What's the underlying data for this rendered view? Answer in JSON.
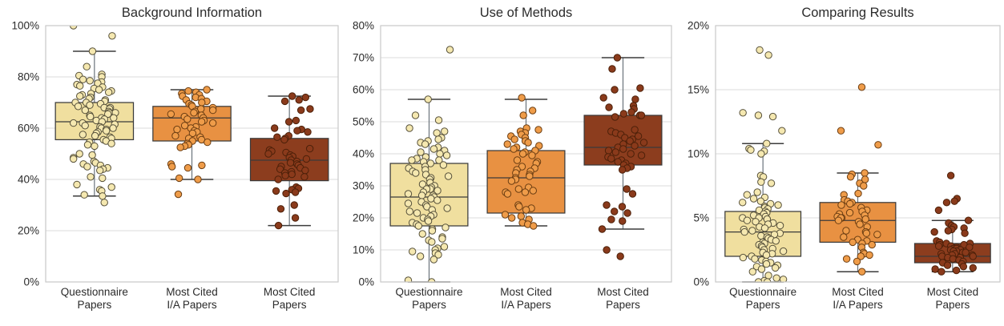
{
  "style": {
    "background": "#FFFFFF",
    "grid_color": "#DBDBDB",
    "spine_color": "#C9C9C9",
    "box_edge_color": "#3B3B3B",
    "whisker_line_color": "#6A737B",
    "cap_color": "#3B3B3B",
    "text_color": "#2B2B2B",
    "title_color": "#2B2B2B"
  },
  "palette": [
    {
      "name": "questionnaire-papers",
      "box_fill": "#F0DF9F",
      "point_fill": "#F5E8B0",
      "point_edge": "#56503A"
    },
    {
      "name": "most-cited-ia-papers",
      "box_fill": "#E89142",
      "point_fill": "#EF9C49",
      "point_edge": "#6B3D12"
    },
    {
      "name": "most-cited-papers",
      "box_fill": "#8C3D1E",
      "point_fill": "#8A3A1B",
      "point_edge": "#4C2009"
    }
  ],
  "chart_data": [
    {
      "type": "box",
      "title": "Background Information",
      "ylim": [
        0,
        100
      ],
      "grid": true,
      "yticks": [
        {
          "value": 0,
          "label": "0%"
        },
        {
          "value": 20,
          "label": "20%"
        },
        {
          "value": 40,
          "label": "40%"
        },
        {
          "value": 60,
          "label": "60%"
        },
        {
          "value": 80,
          "label": "80%"
        },
        {
          "value": 100,
          "label": "100%"
        }
      ],
      "categories": [
        {
          "slug": "questionnaire-papers",
          "label_lines": [
            "Questionnaire",
            "Papers"
          ]
        },
        {
          "slug": "most-cited-ia-papers",
          "label_lines": [
            "Most Cited",
            "I/A Papers"
          ]
        },
        {
          "slug": "most-cited-papers",
          "label_lines": [
            "Most Cited",
            "Papers"
          ]
        }
      ],
      "series": [
        {
          "category": "Questionnaire Papers",
          "box": {
            "whisker_low": 33.5,
            "q1": 55.5,
            "median": 62.5,
            "q3": 70,
            "whisker_high": 90
          },
          "points": [
            100,
            96,
            90,
            84,
            81,
            80.5,
            80,
            79,
            78.5,
            78,
            77.5,
            77,
            76.5,
            76,
            75.5,
            75,
            74.5,
            74,
            73.5,
            73,
            72.5,
            72,
            71.5,
            71,
            70.5,
            70,
            70,
            69.5,
            69,
            68.5,
            68,
            68,
            67.5,
            67,
            66.5,
            66,
            66,
            65.5,
            65,
            64.5,
            64,
            64,
            63.5,
            63,
            62.5,
            62,
            62,
            61.5,
            61,
            60.5,
            60,
            60,
            59.5,
            59,
            58.5,
            58,
            57.5,
            57,
            56.5,
            56,
            55.5,
            55,
            54.5,
            54,
            53.5,
            53,
            50,
            49.5,
            48.5,
            48,
            47,
            46.5,
            46,
            45.5,
            45,
            44.5,
            44,
            43.5,
            41,
            40.5,
            38,
            37,
            36,
            35.5,
            34,
            33.5,
            31
          ]
        },
        {
          "category": "Most Cited I/A Papers",
          "box": {
            "whisker_low": 40,
            "q1": 55,
            "median": 64,
            "q3": 68.5,
            "whisker_high": 75
          },
          "points": [
            75,
            74.5,
            74,
            73.5,
            73,
            72.5,
            72,
            71.5,
            71,
            70.5,
            70,
            69.5,
            69,
            68.5,
            68,
            67.5,
            67,
            66.5,
            66,
            65.5,
            65,
            64.5,
            64,
            63.5,
            63,
            62.5,
            62,
            61,
            60.5,
            60,
            59.5,
            59,
            58.5,
            58,
            57,
            56.5,
            56,
            55.5,
            55,
            54.5,
            54,
            53.5,
            53,
            52.5,
            46,
            45.5,
            45,
            44.5,
            40.5,
            40,
            34.2
          ]
        },
        {
          "category": "Most Cited Papers",
          "box": {
            "whisker_low": 22,
            "q1": 39.5,
            "median": 47.5,
            "q3": 56,
            "whisker_high": 72.5
          },
          "points": [
            72.5,
            72,
            71,
            70.5,
            67.5,
            67,
            63,
            62.5,
            60,
            59.5,
            59,
            58.5,
            57,
            56.5,
            56,
            55.5,
            52,
            51.5,
            51,
            50.5,
            50,
            49.5,
            49,
            48.5,
            48,
            47.5,
            47,
            46.5,
            46,
            45.5,
            45,
            44.5,
            44,
            43.5,
            43,
            42.5,
            42,
            41.5,
            41,
            40,
            37,
            36.5,
            36,
            35.5,
            35,
            34.5,
            30,
            28.5,
            25,
            22
          ]
        }
      ]
    },
    {
      "type": "box",
      "title": "Use of Methods",
      "ylim": [
        0,
        80
      ],
      "grid": true,
      "yticks": [
        {
          "value": 0,
          "label": "0%"
        },
        {
          "value": 10,
          "label": "10%"
        },
        {
          "value": 20,
          "label": "20%"
        },
        {
          "value": 30,
          "label": "30%"
        },
        {
          "value": 40,
          "label": "40%"
        },
        {
          "value": 50,
          "label": "50%"
        },
        {
          "value": 60,
          "label": "60%"
        },
        {
          "value": 70,
          "label": "70%"
        },
        {
          "value": 80,
          "label": "80%"
        }
      ],
      "categories": [
        {
          "slug": "questionnaire-papers",
          "label_lines": [
            "Questionnaire",
            "Papers"
          ]
        },
        {
          "slug": "most-cited-ia-papers",
          "label_lines": [
            "Most Cited",
            "I/A Papers"
          ]
        },
        {
          "slug": "most-cited-papers",
          "label_lines": [
            "Most Cited",
            "Papers"
          ]
        }
      ],
      "series": [
        {
          "category": "Questionnaire Papers",
          "box": {
            "whisker_low": 0,
            "q1": 17.5,
            "median": 26.5,
            "q3": 37,
            "whisker_high": 57
          },
          "points": [
            72.5,
            57,
            52,
            50.5,
            48,
            47,
            46.5,
            45,
            44.5,
            44,
            43.5,
            43,
            42,
            41.5,
            41,
            40.5,
            40,
            39.5,
            39,
            38.5,
            38,
            38,
            37.5,
            37,
            36.5,
            36,
            35.5,
            35,
            34.5,
            34,
            33.5,
            33,
            32.5,
            32,
            31,
            30.5,
            30,
            29.5,
            29,
            29,
            28.5,
            28,
            27.5,
            27,
            27,
            26.5,
            26,
            25.5,
            25,
            24.5,
            24,
            23.5,
            23,
            22.5,
            22,
            21.5,
            21,
            20.5,
            20,
            19.5,
            19,
            18.5,
            18,
            17.5,
            17,
            16.5,
            16,
            15,
            14,
            13.5,
            13,
            12.5,
            11,
            10.5,
            10,
            9.5,
            9,
            8.5,
            8,
            7,
            0.5,
            0
          ]
        },
        {
          "category": "Most Cited I/A Papers",
          "box": {
            "whisker_low": 17.5,
            "q1": 21.5,
            "median": 32.5,
            "q3": 41,
            "whisker_high": 57
          },
          "points": [
            57.5,
            53.5,
            52,
            48,
            47.5,
            47,
            46.5,
            46,
            45.5,
            45,
            44.5,
            44,
            43.5,
            43,
            42.5,
            42,
            41.5,
            41,
            40.5,
            40,
            39.5,
            38,
            37.5,
            37,
            36,
            35.5,
            35,
            34.5,
            34,
            33.5,
            33,
            32.5,
            32,
            31.5,
            29.5,
            29,
            28.5,
            28,
            28,
            27.5,
            24,
            23.5,
            23,
            22.5,
            21,
            20.5,
            20,
            19.5,
            18.5,
            18,
            17.5
          ]
        },
        {
          "category": "Most Cited Papers",
          "box": {
            "whisker_low": 16.5,
            "q1": 36.5,
            "median": 42,
            "q3": 52,
            "whisker_high": 70
          },
          "points": [
            70,
            66.5,
            60.5,
            60,
            57.5,
            57,
            55,
            54.5,
            54,
            53,
            52.5,
            52,
            52,
            51.5,
            47.5,
            47,
            46.5,
            46,
            45.5,
            45,
            44.5,
            44,
            43.5,
            43,
            42.5,
            42,
            41.5,
            41,
            40.5,
            40,
            39.5,
            39,
            38.5,
            38,
            37.5,
            37,
            36.5,
            36,
            35.5,
            35,
            29,
            27.5,
            24,
            23.5,
            22,
            21.5,
            19.5,
            19,
            16.5,
            10,
            8
          ]
        }
      ]
    },
    {
      "type": "box",
      "title": "Comparing Results",
      "ylim": [
        0,
        20
      ],
      "grid": true,
      "yticks": [
        {
          "value": 0,
          "label": "0%"
        },
        {
          "value": 5,
          "label": "5%"
        },
        {
          "value": 10,
          "label": "10%"
        },
        {
          "value": 15,
          "label": "15%"
        },
        {
          "value": 20,
          "label": "20%"
        }
      ],
      "categories": [
        {
          "slug": "questionnaire-papers",
          "label_lines": [
            "Questionnaire",
            "Papers"
          ]
        },
        {
          "slug": "most-cited-ia-papers",
          "label_lines": [
            "Most Cited",
            "I/A Papers"
          ]
        },
        {
          "slug": "most-cited-papers",
          "label_lines": [
            "Most Cited",
            "Papers"
          ]
        }
      ],
      "series": [
        {
          "category": "Questionnaire Papers",
          "box": {
            "whisker_low": 0,
            "q1": 2.0,
            "median": 3.9,
            "q3": 5.5,
            "whisker_high": 10.8
          },
          "points": [
            18.1,
            17.7,
            13.2,
            13.0,
            12.9,
            11.8,
            10.8,
            10.4,
            10.3,
            10.2,
            10.0,
            8.3,
            8.2,
            7.8,
            7.7,
            7.0,
            6.8,
            6.6,
            6.5,
            6.3,
            6.2,
            6.1,
            6.0,
            5.9,
            5.8,
            5.7,
            5.6,
            5.5,
            5.4,
            5.3,
            5.2,
            5.1,
            5.0,
            5.0,
            4.9,
            4.8,
            4.7,
            4.6,
            4.5,
            4.4,
            4.3,
            4.2,
            4.1,
            4.0,
            3.9,
            3.8,
            3.7,
            3.6,
            3.5,
            3.4,
            3.3,
            3.2,
            3.1,
            3.0,
            2.9,
            2.8,
            2.7,
            2.6,
            2.5,
            2.4,
            2.3,
            2.2,
            2.1,
            2.0,
            1.9,
            1.8,
            1.7,
            1.6,
            1.5,
            1.4,
            1.3,
            1.2,
            1.1,
            1.0,
            0.8,
            0.5,
            0.3,
            0.2,
            0.1,
            0.0,
            0.0
          ]
        },
        {
          "category": "Most Cited I/A Papers",
          "box": {
            "whisker_low": 0.8,
            "q1": 3.1,
            "median": 4.8,
            "q3": 6.2,
            "whisker_high": 8.5
          },
          "points": [
            15.2,
            11.8,
            10.7,
            8.5,
            8.4,
            8.2,
            8.0,
            7.7,
            7.5,
            6.9,
            6.8,
            6.4,
            6.3,
            6.2,
            6.1,
            6.0,
            5.8,
            5.6,
            5.5,
            5.4,
            5.3,
            5.2,
            5.1,
            5.0,
            5.0,
            4.9,
            4.8,
            4.7,
            4.5,
            4.3,
            4.0,
            3.9,
            3.8,
            3.7,
            3.5,
            3.3,
            3.2,
            3.1,
            3.0,
            2.9,
            2.7,
            2.3,
            2.2,
            2.1,
            2.0,
            1.8,
            1.6,
            0.8
          ]
        },
        {
          "category": "Most Cited Papers",
          "box": {
            "whisker_low": 0.8,
            "q1": 1.5,
            "median": 2.0,
            "q3": 3.0,
            "whisker_high": 4.8
          },
          "points": [
            8.3,
            6.5,
            6.3,
            6.2,
            5.6,
            4.8,
            4.6,
            4.4,
            4.3,
            4.2,
            4.1,
            4.0,
            3.9,
            3.8,
            3.2,
            3.1,
            3.0,
            3.0,
            2.9,
            2.9,
            2.8,
            2.8,
            2.7,
            2.7,
            2.6,
            2.6,
            2.5,
            2.5,
            2.4,
            2.4,
            2.3,
            2.3,
            2.2,
            2.2,
            2.1,
            2.1,
            2.0,
            2.0,
            1.9,
            1.9,
            1.8,
            1.7,
            1.6,
            1.5,
            1.4,
            1.3,
            1.2,
            1.1,
            1.0,
            0.9,
            0.8
          ]
        }
      ]
    }
  ]
}
